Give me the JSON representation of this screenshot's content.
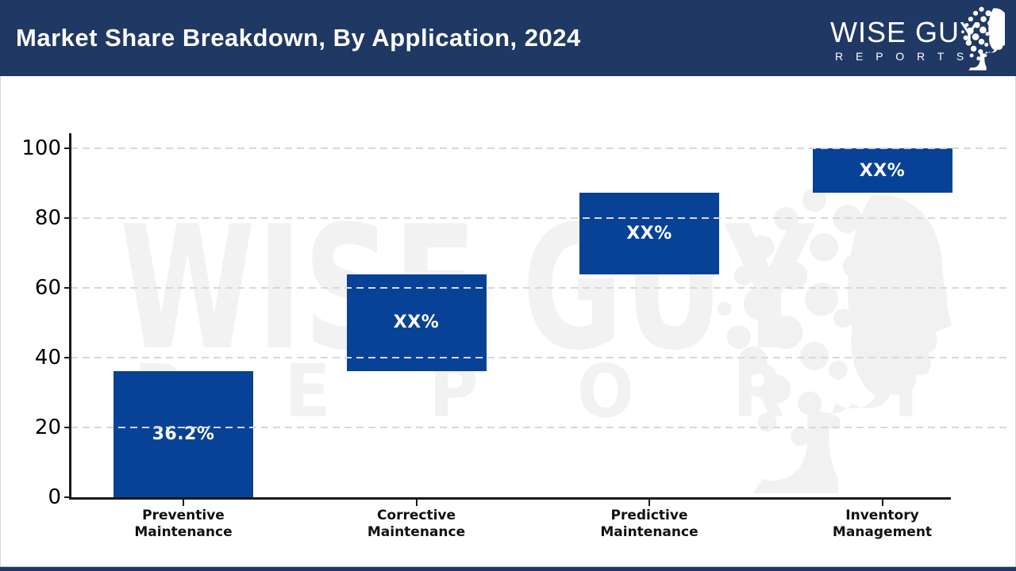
{
  "header": {
    "title": "Market Share Breakdown, By Application, 2024",
    "logo_line1": "WISE GUY",
    "logo_line2": "R E P O R T S"
  },
  "watermark": {
    "line1": "WISE GUY",
    "line2": "R E P O R T S"
  },
  "colors": {
    "header_bg": "#1f3864",
    "bottom_bar": "#1f3864",
    "bar_fill": "#084296",
    "bar_label_text": "#ffffff",
    "gridline": "#d8d8d8",
    "axis": "#1a1a1a",
    "watermark": "#f2f2f2"
  },
  "chart_data": {
    "type": "bar",
    "subtype": "floating-waterfall",
    "title": "Market Share Breakdown, By Application, 2024",
    "categories": [
      "Preventive Maintenance",
      "Corrective Maintenance",
      "Predictive Maintenance",
      "Inventory Management"
    ],
    "segments": [
      {
        "category": "Preventive Maintenance",
        "start": 0,
        "end": 36.2,
        "label": "36.2%"
      },
      {
        "category": "Corrective Maintenance",
        "start": 36.2,
        "end": 63.8,
        "label": "XX%"
      },
      {
        "category": "Predictive Maintenance",
        "start": 63.8,
        "end": 87.2,
        "label": "XX%"
      },
      {
        "category": "Inventory Management",
        "start": 87.2,
        "end": 100,
        "label": "XX%"
      }
    ],
    "y_ticks": [
      0,
      20,
      40,
      60,
      80,
      100
    ],
    "ylim": [
      0,
      100
    ],
    "xlabel": "",
    "ylabel": "",
    "grid": "dashed-horizontal",
    "legend": "none"
  }
}
